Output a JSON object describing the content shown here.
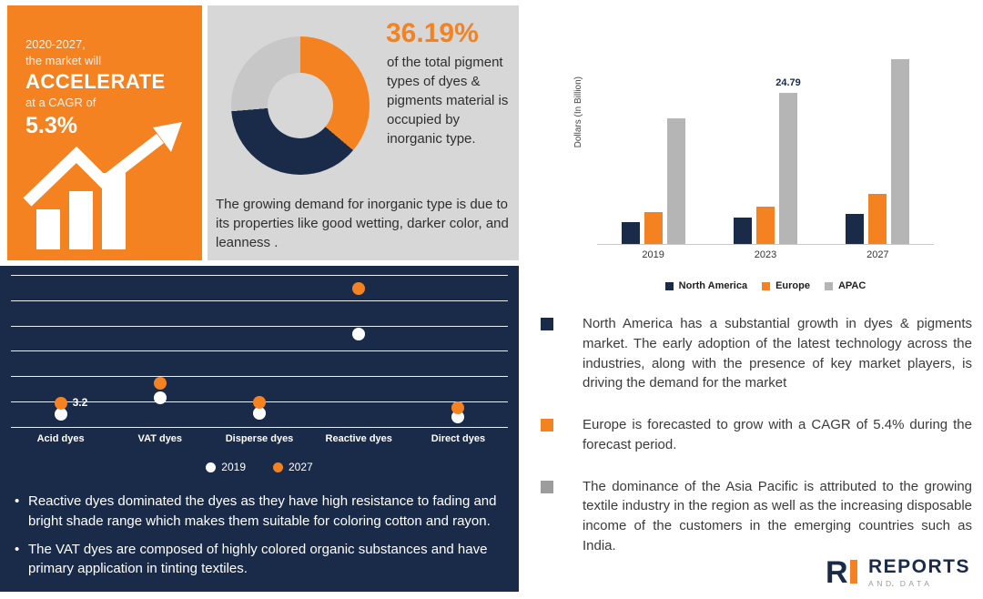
{
  "colors": {
    "orange": "#f58220",
    "navy": "#1a2b4a",
    "apac_gray": "#b5b5b5",
    "panel_gray": "#d7d7d7"
  },
  "accelerate_panel": {
    "period": "2020-2027,",
    "line2": "the market will",
    "headline": "ACCELERATE",
    "line4": "at a CAGR of",
    "cagr": "5.3%"
  },
  "donut_panel": {
    "highlight": "36.19%",
    "description": "of the total pigment types of dyes & pigments material is occupied by inorganic type.",
    "note": "The growing demand for inorganic type is due to its properties like good wetting, darker color, and leanness ."
  },
  "dot_panel": {
    "bullets": [
      "Reactive dyes dominated the dyes as they have high resistance to fading and bright shade range which makes them suitable for coloring cotton and rayon.",
      "The VAT dyes are composed of highly colored organic substances and have primary application in tinting textiles."
    ]
  },
  "region_bullets": [
    {
      "color": "#1a2b4a",
      "text": "North America has a substantial growth in dyes & pigments market. The early adoption of the latest technology across the industries, along with the presence of key market players, is driving the demand for the market"
    },
    {
      "color": "#f58220",
      "text": "Europe is forecasted to grow with a CAGR of 5.4% during the forecast period."
    },
    {
      "color": "#9c9c9c",
      "text": "The dominance of the Asia Pacific is attributed to the growing textile industry in the region as well as the increasing disposable income of the customers in the emerging countries such as India."
    }
  ],
  "logo": {
    "brand": "REPORTS",
    "sub": "AND DATA",
    "dot": "."
  },
  "chart_data": [
    {
      "type": "pie",
      "title": "Share of pigment material types",
      "donut_hole": 0.47,
      "slices": [
        {
          "label": "Inorganic",
          "percent": 36.19,
          "color": "#f58220"
        },
        {
          "label": "",
          "percent": 37.5,
          "color": "#1a2b4a"
        },
        {
          "label": "",
          "percent": 26.31,
          "color": "#c7c7c7"
        }
      ],
      "annotation": "36.19% of the total pigment types of dyes & pigments material is occupied by inorganic type."
    },
    {
      "type": "bar",
      "categories": [
        "2019",
        "2023",
        "2027"
      ],
      "series": [
        {
          "name": "North America",
          "color": "#1a2b4a",
          "values": [
            3.6,
            4.3,
            4.9
          ]
        },
        {
          "name": "Europe",
          "color": "#f58220",
          "values": [
            5.2,
            6.2,
            8.2
          ]
        },
        {
          "name": "APAC",
          "color": "#b5b5b5",
          "values": [
            20.6,
            24.79,
            30.3
          ]
        }
      ],
      "ylabel": "Dollars (In Billion)",
      "ylim": [
        0,
        38
      ],
      "grid": false,
      "legend_position": "bottom",
      "annotations": [
        {
          "category": "2023",
          "series": "APAC",
          "text": "24.79"
        }
      ]
    },
    {
      "type": "scatter",
      "categories": [
        "Acid dyes",
        "VAT dyes",
        "Disperse dyes",
        "Reactive dyes",
        "Direct dyes"
      ],
      "series": [
        {
          "name": "2019",
          "color": "#ffffff",
          "values": [
            1.8,
            3.9,
            1.9,
            12.3,
            1.4
          ]
        },
        {
          "name": "2027",
          "color": "#f58220",
          "values": [
            3.2,
            5.8,
            3.3,
            18.2,
            2.6
          ]
        }
      ],
      "ylim": [
        0,
        20
      ],
      "gridlines": 7,
      "legend_position": "bottom",
      "annotation": {
        "category": "Acid dyes",
        "series": "2027",
        "text": "3.2"
      }
    }
  ]
}
